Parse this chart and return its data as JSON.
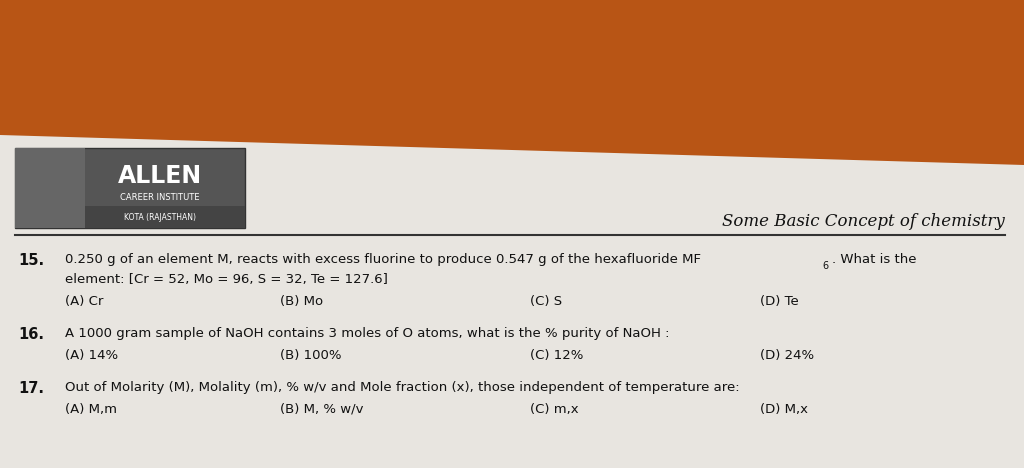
{
  "bg_color": "#B85515",
  "paper_color": "#E8E5E0",
  "title": "Some Basic Concept of chemistry",
  "title_fontsize": 12,
  "q15_num": "15.",
  "q15_line1": "0.250 g of an element M, reacts with excess fluorine to produce 0.547 g of the hexafluoride MF",
  "q15_sub6": "6",
  "q15_line1end": ". What is the",
  "q15_line2": "element: [Cr = 52, Mo = 96, S = 32, Te = 127.6]",
  "q15_A": "(A) Cr",
  "q15_B": "(B) Mo",
  "q15_C": "(C) S",
  "q15_D": "(D) Te",
  "q16_num": "16.",
  "q16_line": "A 1000 gram sample of NaOH contains 3 moles of O atoms, what is the % purity of NaOH :",
  "q16_A": "(A) 14%",
  "q16_B": "(B) 100%",
  "q16_C": "(C) 12%",
  "q16_D": "(D) 24%",
  "q17_num": "17.",
  "q17_line": "Out of Molarity (M), Molality (m), % w/v and Mole fraction (x), those independent of temperature are:",
  "q17_A": "(A) M,m",
  "q17_B": "(B) M, % w/v",
  "q17_C": "(C) m,x",
  "q17_D": "(D) M,x",
  "allen_line1": "ALLEN",
  "allen_line2": "CAREER INSTITUTE",
  "allen_line3": "KOTA (RAJASTHAN)",
  "text_color": "#111111",
  "mfs": 9.5,
  "nfs": 10.5
}
